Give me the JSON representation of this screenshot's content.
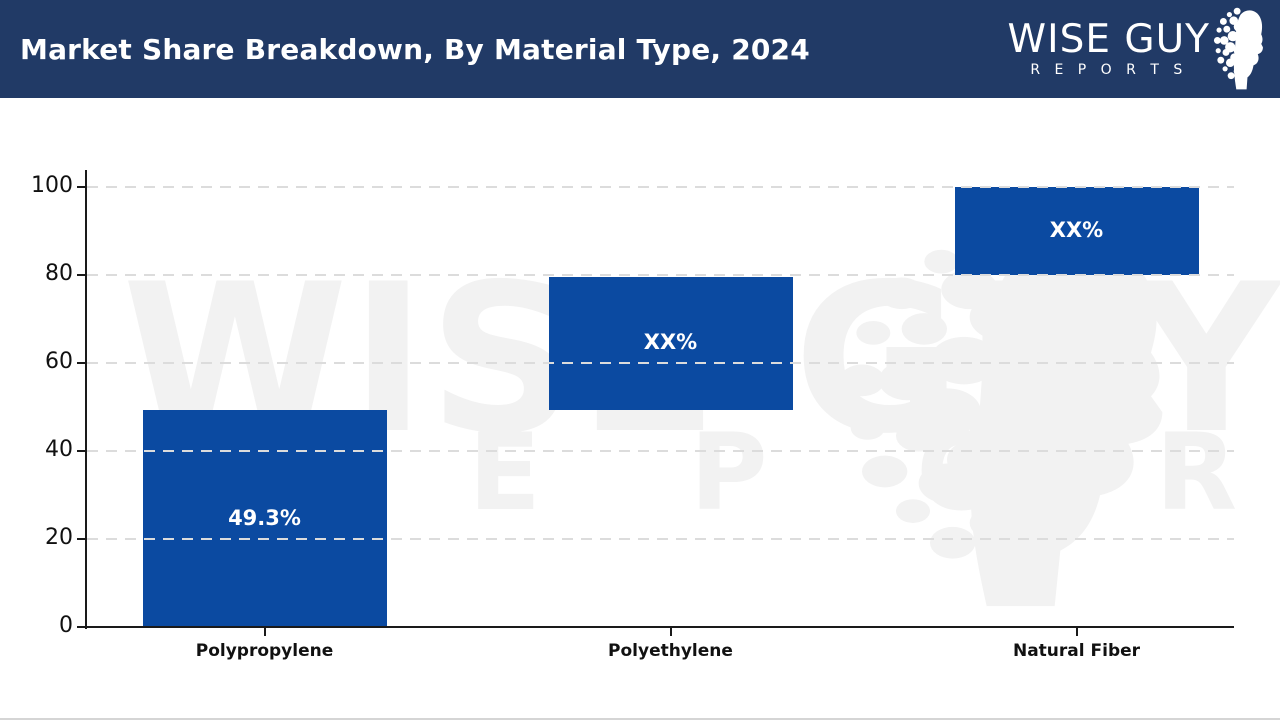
{
  "header": {
    "title": "Market Share Breakdown, By Material Type, 2024",
    "bg_color": "#213A66",
    "logo": {
      "wordmark": "WISE GUY",
      "subtext": "R E P O R T S"
    }
  },
  "watermark": {
    "wordmark": "WISE GUY",
    "subtext": "R E P O R T S",
    "color": "#F2F2F2"
  },
  "chart_data": {
    "type": "bar",
    "subtype": "segmented-waterfall",
    "title": "Market Share Breakdown, By Material Type, 2024",
    "categories": [
      "Polypropylene",
      "Polyethylene",
      "Natural Fiber"
    ],
    "segments": [
      {
        "category": "Polypropylene",
        "start": 0,
        "end": 49.3,
        "label": "49.3%"
      },
      {
        "category": "Polyethylene",
        "start": 49.3,
        "end": 79.6,
        "label": "XX%"
      },
      {
        "category": "Natural Fiber",
        "start": 79.9,
        "end": 100,
        "label": "XX%"
      }
    ],
    "yticks": [
      0,
      20,
      40,
      60,
      80,
      100
    ],
    "ylim": [
      0,
      104
    ],
    "xlabel": "",
    "ylabel": "",
    "legend": "none",
    "grid": "horizontal-dashed",
    "grid_color": "#DCDCDC",
    "axis_color": "#1A1A1A",
    "bar_color": "#0B4AA1",
    "value_label_color": "#FFFFFF"
  }
}
